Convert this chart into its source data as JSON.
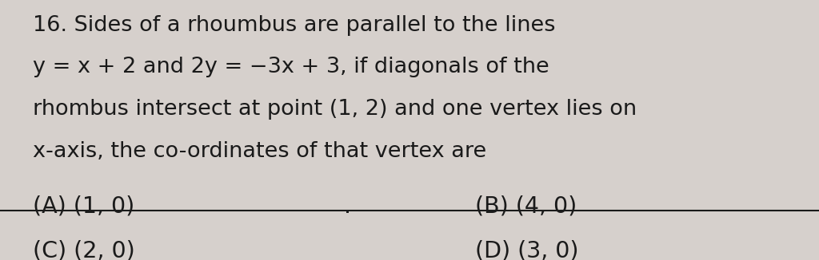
{
  "background_color": "#d6d0cc",
  "text_color": "#1a1a1a",
  "question_number": "16.",
  "line1": "Sides of a rhoumbus are parallel to the lines",
  "line2": "y = x + 2 and 2y = −3x + 3, if diagonals of the",
  "line3": "rhombus intersect at point (1, 2) and one vertex lies on",
  "line4": "x-axis, the co-ordinates of that vertex are",
  "optA": "(A) (1, 0)",
  "optB": "(B) (4, 0)",
  "optC": "(C) (2, 0)",
  "optD": "(D) (3, 0)",
  "dot": ".",
  "bottom_line_color": "#1a1a1a",
  "font_size_main": 19.5,
  "font_size_opts": 20.5
}
